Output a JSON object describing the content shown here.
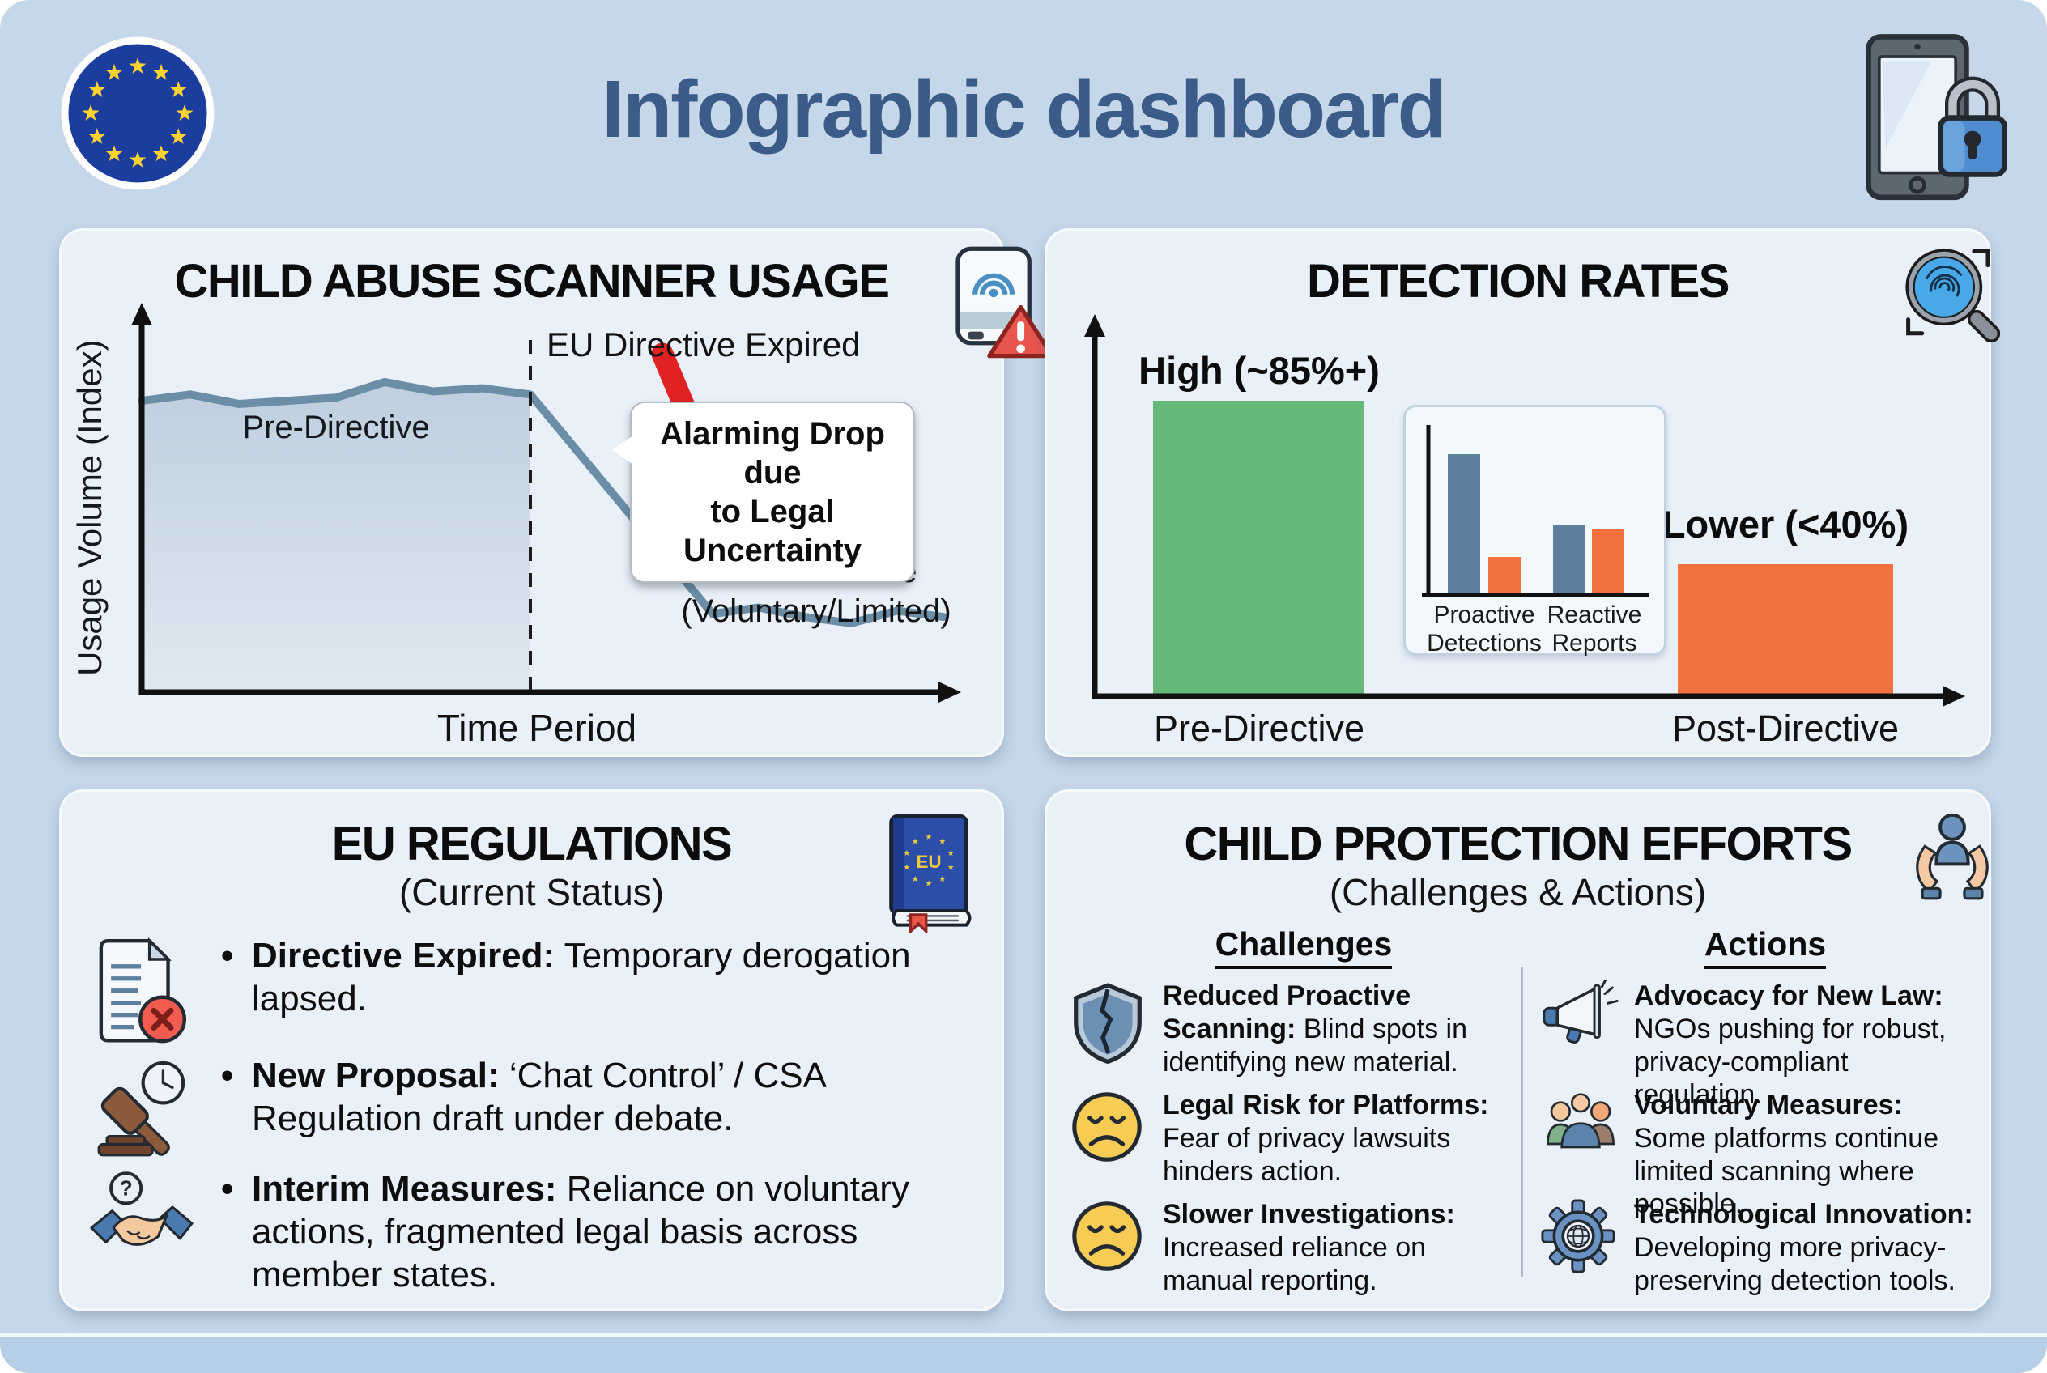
{
  "header": {
    "title": "Infographic dashboard"
  },
  "colors": {
    "page_bg": "#c6d7e9",
    "panel_bg": "#e9f0f8",
    "title_blue": "#3b5c88",
    "green_bar": "#65b878",
    "orange_bar": "#f2713e",
    "steel_line": "#6b8da6",
    "red_arrow": "#e02222",
    "eu_blue": "#1b3d9e",
    "star_gold": "#ffd22e"
  },
  "panel1": {
    "title": "CHILD ABUSE SCANNER USAGE",
    "ylabel": "Usage Volume (Index)",
    "xlabel": "Time Period",
    "pre_label": "Pre-Directive",
    "event_label": "EU Directive Expired",
    "callout_line1": "Alarming Drop due",
    "callout_line2": "to Legal Uncertainty",
    "post_label_line1": "Post-Directive",
    "post_label_line2": "(Voluntary/Limited)"
  },
  "panel2": {
    "title": "DETECTION RATES",
    "bar1_value_label": "High (~85%+)",
    "bar2_value_label": "Lower (<40%)",
    "cat1": "Pre-Directive",
    "cat2": "Post-Directive",
    "inset": {
      "group1_line1": "Proactive",
      "group1_line2": "Detections",
      "group2_line1": "Reactive",
      "group2_line2": "Reports"
    }
  },
  "panel3": {
    "title": "EU REGULATIONS",
    "subtitle": "(Current Status)",
    "bullet": "•",
    "items": [
      {
        "bold": "Directive Expired:",
        "rest": " Temporary derogation lapsed."
      },
      {
        "bold": "New Proposal:",
        "rest": " ‘Chat Control’ / CSA Regulation draft under debate."
      },
      {
        "bold": "Interim Measures:",
        "rest": " Reliance on voluntary actions, fragmented legal basis across member states."
      }
    ]
  },
  "panel4": {
    "title": "CHILD PROTECTION EFFORTS",
    "subtitle": "(Challenges & Actions)",
    "challenges_header": "Challenges",
    "actions_header": "Actions",
    "challenges": [
      {
        "bold": "Reduced Proactive Scanning:",
        "rest": " Blind spots in identifying new material."
      },
      {
        "bold": "Legal Risk for Platforms:",
        "rest": " Fear of privacy lawsuits hinders action."
      },
      {
        "bold": "Slower Investigations:",
        "rest": " Increased reliance on manual reporting."
      }
    ],
    "actions": [
      {
        "bold": "Advocacy for New Law:",
        "rest": " NGOs pushing for robust, privacy-compliant regulation."
      },
      {
        "bold": "Voluntary Measures:",
        "rest": " Some platforms continue limited scanning where possible."
      },
      {
        "bold": "Technological Innovation:",
        "rest": " Developing more privacy-preserving detection tools."
      }
    ]
  },
  "icons": {
    "eu_book_label": "EU",
    "question_mark": "?"
  },
  "chart_data": [
    {
      "type": "area",
      "title": "CHILD ABUSE SCANNER USAGE",
      "xlabel": "Time Period",
      "ylabel": "Usage Volume (Index)",
      "series": [
        {
          "name": "Usage Volume (Index)",
          "x": [
            0,
            1,
            2,
            3,
            4,
            5,
            6,
            7,
            8,
            9,
            10,
            11,
            12,
            13,
            14
          ],
          "values": [
            93,
            95,
            92,
            93,
            94,
            99,
            96,
            97,
            95,
            25,
            27,
            24,
            22,
            26,
            24
          ]
        }
      ],
      "event_x": 8,
      "annotations": [
        "EU Directive Expired",
        "Alarming Drop due to Legal Uncertainty",
        "Pre-Directive",
        "Post-Directive (Voluntary/Limited)"
      ],
      "ylim": [
        0,
        100
      ],
      "grid": false,
      "legend": false
    },
    {
      "type": "bar",
      "title": "DETECTION RATES",
      "categories": [
        "Pre-Directive",
        "Post-Directive"
      ],
      "values": [
        85,
        38
      ],
      "value_labels": [
        "High (~85%+)",
        "Lower (<40%)"
      ],
      "bar_colors": [
        "#65b878",
        "#f2713e"
      ],
      "ylim": [
        0,
        100
      ],
      "grid": false,
      "legend": false
    },
    {
      "type": "bar",
      "title": "Detection composition (inset)",
      "categories": [
        "Proactive Detections",
        "Reactive Reports"
      ],
      "series": [
        {
          "name": "Pre-Directive",
          "color": "#5b7f9d",
          "values": [
            82,
            41
          ]
        },
        {
          "name": "Post-Directive",
          "color": "#f2713e",
          "values": [
            22,
            38
          ]
        }
      ],
      "grid": false,
      "legend": false
    }
  ]
}
